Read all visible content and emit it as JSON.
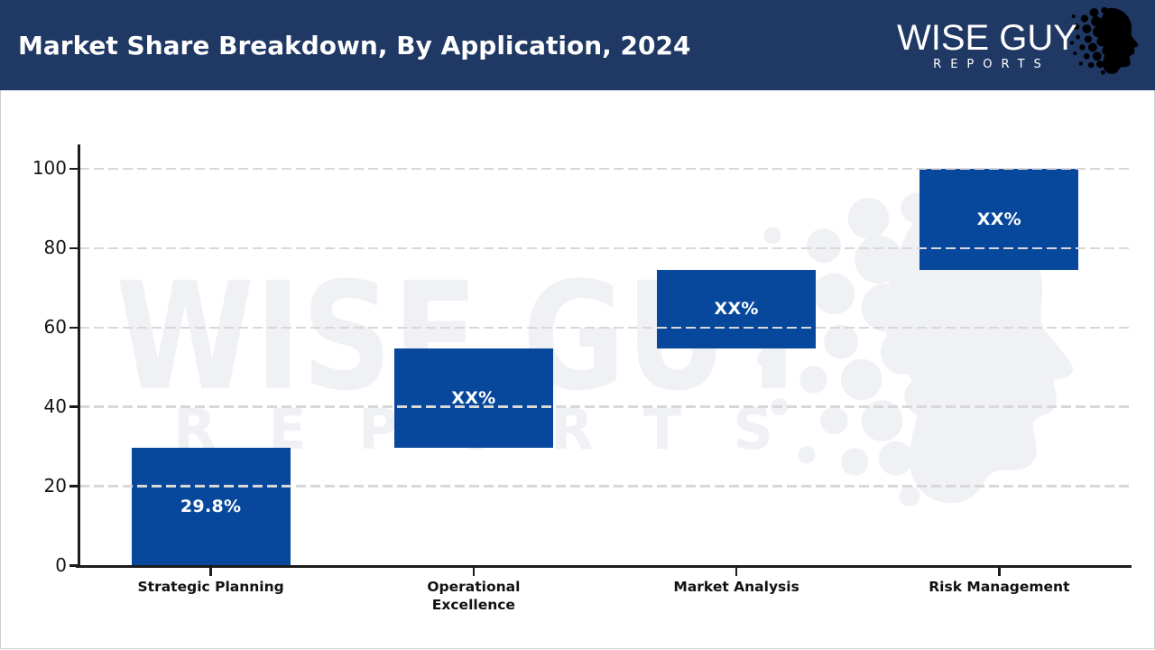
{
  "header": {
    "title": "Market Share Breakdown, By Application, 2024",
    "logo": {
      "line1": "WISE GUY",
      "line2": "REPORTS"
    }
  },
  "watermark": {
    "line1": "WISE GUY",
    "line2": "REPORTS"
  },
  "colors": {
    "header_bg": "#1f3864",
    "bar": "#08489c",
    "grid": "#d8d8d8",
    "axis": "#1c1c1c",
    "watermark": "#f0f1f4",
    "title_text": "#ffffff",
    "bar_label": "#ffffff",
    "category_text": "#111111"
  },
  "chart_data": {
    "type": "bar",
    "subtype": "waterfall",
    "title": "Market Share Breakdown, By Application, 2024",
    "categories": [
      "Strategic Planning",
      "Operational Excellence",
      "Market Analysis",
      "Risk Management"
    ],
    "category_labels": [
      "Strategic Planning",
      "Operational\nExcellence",
      "Market Analysis",
      "Risk Management"
    ],
    "segments": [
      {
        "category": "Strategic Planning",
        "start": 0,
        "end": 29.8,
        "label": "29.8%"
      },
      {
        "category": "Operational Excellence",
        "start": 29.8,
        "end": 54.8,
        "label": "XX%"
      },
      {
        "category": "Market Analysis",
        "start": 54.8,
        "end": 74.6,
        "label": "XX%"
      },
      {
        "category": "Risk Management",
        "start": 74.6,
        "end": 100,
        "label": "XX%"
      }
    ],
    "ylim": [
      0,
      100
    ],
    "yticks": [
      0,
      20,
      40,
      60,
      80,
      100
    ],
    "xlabel": "",
    "ylabel": "",
    "grid": {
      "axis": "y",
      "style": "dashed",
      "drawn_above_bars": true
    },
    "legend": "none"
  }
}
